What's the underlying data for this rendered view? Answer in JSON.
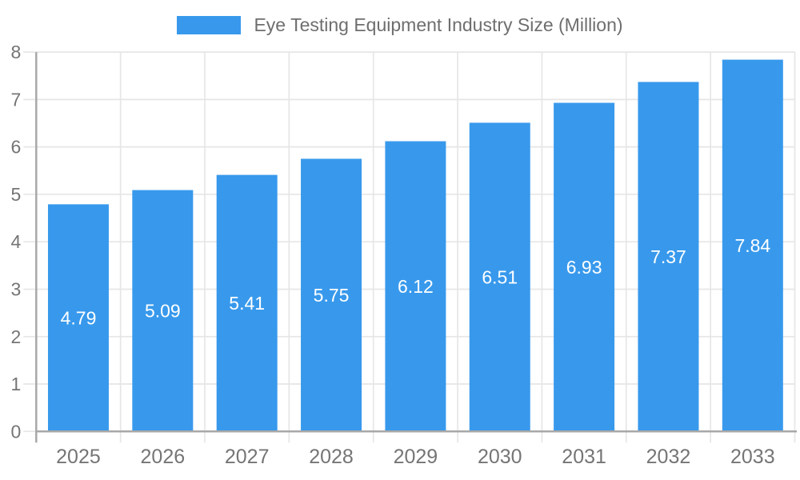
{
  "legend": {
    "label": "Eye Testing Equipment Industry Size (Million)"
  },
  "chart_data": {
    "type": "bar",
    "title": "Eye Testing Equipment Industry Size (Million)",
    "series_name": "Eye Testing Equipment Industry Size (Million)",
    "categories": [
      "2025",
      "2026",
      "2027",
      "2028",
      "2029",
      "2030",
      "2031",
      "2032",
      "2033"
    ],
    "values": [
      4.79,
      5.09,
      5.41,
      5.75,
      6.12,
      6.51,
      6.93,
      7.37,
      7.84
    ],
    "value_labels": [
      "4.79",
      "5.09",
      "5.41",
      "5.75",
      "6.12",
      "6.51",
      "6.93",
      "7.37",
      "7.84"
    ],
    "xlabel": "",
    "ylabel": "",
    "ylim": [
      0,
      8
    ],
    "yticks": [
      0,
      1,
      2,
      3,
      4,
      5,
      6,
      7,
      8
    ],
    "grid": true,
    "legend_position": "top",
    "colors": {
      "bar": "#3899EC",
      "value_label": "#FFFFFF",
      "grid": "#E6E6E6",
      "axis": "#A8A8A8",
      "tick_label": "#757575",
      "title": "#6E6E6E",
      "background": "#FFFFFF"
    }
  }
}
